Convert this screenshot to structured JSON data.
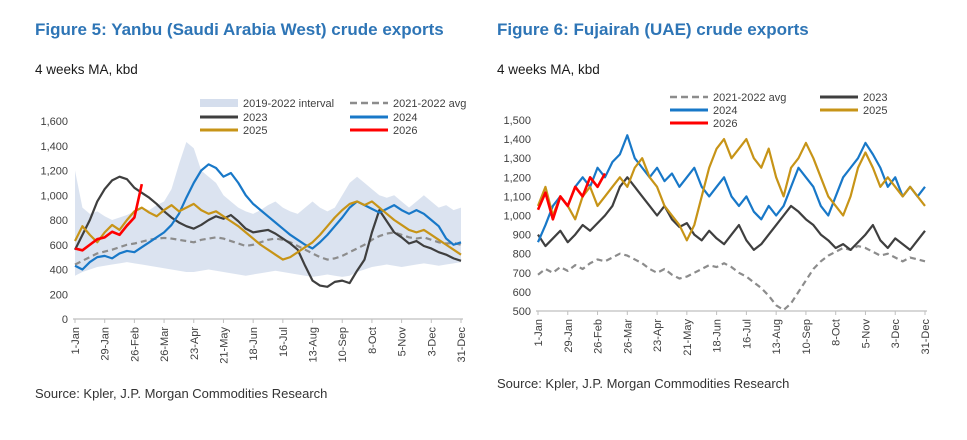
{
  "figures": [
    {
      "title": "Figure 5: Yanbu (Saudi Arabia West) crude exports",
      "subtitle": "4 weeks MA, kbd",
      "source": "Source: Kpler, J.P. Morgan Commodities Research"
    },
    {
      "title": "Figure 6: Fujairah (UAE) crude exports",
      "subtitle": "4 weeks MA, kbd",
      "source": "Source: Kpler, J.P. Morgan Commodities Research"
    }
  ],
  "colors": {
    "title": "#2E75B6",
    "axis_text": "#404040",
    "axis_line": "#BFBFBF",
    "band": "#D5DEED",
    "black": "#3F3F3F",
    "blue": "#1878C8",
    "gold": "#C79417",
    "red": "#FF0000",
    "gray": "#8C8C8C"
  },
  "chart_data": [
    {
      "type": "line",
      "title": "Figure 5: Yanbu (Saudi Arabia West) crude exports",
      "xlabel": "",
      "ylabel": "kbd (4 weeks MA)",
      "ylim": [
        0,
        1600
      ],
      "ytick_step": 200,
      "grid": false,
      "legend_position": "top-inside",
      "weeks_per_year": 52,
      "x_tick_labels": [
        "1-Jan",
        "29-Jan",
        "26-Feb",
        "26-Mar",
        "23-Apr",
        "21-May",
        "18-Jun",
        "16-Jul",
        "13-Aug",
        "10-Sep",
        "8-Oct",
        "5-Nov",
        "3-Dec",
        "31-Dec"
      ],
      "band": {
        "name": "2019-2022 interval",
        "upper": [
          1200,
          900,
          850,
          870,
          830,
          800,
          820,
          840,
          870,
          900,
          880,
          920,
          950,
          1050,
          1250,
          1430,
          1380,
          1200,
          1150,
          1100,
          1000,
          950,
          900,
          870,
          850,
          880,
          920,
          950,
          900,
          870,
          850,
          900,
          950,
          900,
          870,
          900,
          1000,
          1100,
          1150,
          1100,
          1050,
          1000,
          980,
          1000,
          950,
          900,
          950,
          1000,
          950,
          900,
          920,
          880,
          900
        ],
        "lower": [
          350,
          380,
          400,
          420,
          430,
          440,
          450,
          460,
          450,
          440,
          430,
          420,
          410,
          400,
          390,
          380,
          380,
          390,
          400,
          390,
          380,
          370,
          360,
          350,
          360,
          370,
          380,
          390,
          380,
          370,
          360,
          350,
          340,
          350,
          360,
          350,
          340,
          350,
          380,
          400,
          420,
          430,
          440,
          430,
          420,
          430,
          440,
          450,
          440,
          430,
          440,
          450,
          460
        ]
      },
      "series": [
        {
          "name": "2021-2022 avg",
          "style": "dashed",
          "color_key": "gray",
          "values": [
            440,
            470,
            500,
            530,
            545,
            560,
            580,
            600,
            610,
            625,
            640,
            650,
            655,
            650,
            640,
            630,
            620,
            640,
            650,
            660,
            650,
            630,
            610,
            590,
            600,
            620,
            640,
            650,
            640,
            620,
            590,
            560,
            530,
            500,
            480,
            490,
            510,
            540,
            570,
            600,
            640,
            670,
            690,
            700,
            680,
            660,
            650,
            660,
            640,
            620,
            610,
            615,
            600
          ]
        },
        {
          "name": "2023",
          "style": "solid",
          "color_key": "black",
          "values": [
            560,
            680,
            800,
            950,
            1050,
            1120,
            1150,
            1130,
            1060,
            1020,
            980,
            930,
            870,
            820,
            780,
            750,
            730,
            760,
            800,
            830,
            810,
            840,
            790,
            730,
            700,
            710,
            720,
            690,
            650,
            610,
            560,
            430,
            310,
            270,
            260,
            300,
            310,
            290,
            390,
            480,
            700,
            880,
            790,
            700,
            660,
            610,
            630,
            590,
            570,
            540,
            520,
            490,
            470
          ]
        },
        {
          "name": "2024",
          "style": "solid",
          "color_key": "blue",
          "values": [
            430,
            400,
            460,
            500,
            510,
            490,
            530,
            550,
            540,
            580,
            620,
            660,
            700,
            760,
            850,
            980,
            1100,
            1200,
            1250,
            1220,
            1150,
            1180,
            1100,
            1000,
            930,
            880,
            830,
            780,
            730,
            680,
            640,
            600,
            570,
            620,
            680,
            750,
            820,
            900,
            950,
            920,
            890,
            860,
            890,
            920,
            880,
            850,
            880,
            850,
            800,
            750,
            650,
            600,
            620
          ]
        },
        {
          "name": "2025",
          "style": "solid",
          "color_key": "gold",
          "values": [
            630,
            750,
            680,
            620,
            700,
            760,
            720,
            800,
            870,
            900,
            860,
            830,
            880,
            920,
            870,
            900,
            930,
            880,
            850,
            870,
            830,
            790,
            750,
            700,
            650,
            600,
            560,
            520,
            480,
            500,
            540,
            580,
            620,
            680,
            750,
            820,
            880,
            930,
            950,
            920,
            950,
            900,
            850,
            800,
            760,
            720,
            700,
            720,
            680,
            640,
            600,
            560,
            520
          ]
        },
        {
          "name": "2026",
          "style": "solid",
          "color_key": "red",
          "values": [
            570,
            555,
            600,
            645,
            660,
            705,
            680,
            755,
            820,
            1090
          ]
        }
      ],
      "legend_columns": [
        [
          {
            "label": "2019-2022 interval",
            "type": "band",
            "color_key": "band"
          },
          {
            "label": "2023",
            "type": "solid",
            "color_key": "black"
          },
          {
            "label": "2025",
            "type": "solid",
            "color_key": "gold"
          }
        ],
        [
          {
            "label": "2021-2022 avg",
            "type": "dashed",
            "color_key": "gray"
          },
          {
            "label": "2024",
            "type": "solid",
            "color_key": "blue"
          },
          {
            "label": "2026",
            "type": "solid",
            "color_key": "red"
          }
        ]
      ]
    },
    {
      "type": "line",
      "title": "Figure 6: Fujairah (UAE) crude exports",
      "xlabel": "",
      "ylabel": "kbd (4 weeks MA)",
      "ylim": [
        500,
        1500
      ],
      "ytick_step": 100,
      "grid": false,
      "legend_position": "top-inside",
      "weeks_per_year": 52,
      "x_tick_labels": [
        "1-Jan",
        "29-Jan",
        "26-Feb",
        "26-Mar",
        "23-Apr",
        "21-May",
        "18-Jun",
        "16-Jul",
        "13-Aug",
        "10-Sep",
        "8-Oct",
        "5-Nov",
        "3-Dec",
        "31-Dec"
      ],
      "series": [
        {
          "name": "2021-2022 avg",
          "style": "dashed",
          "color_key": "gray",
          "values": [
            690,
            720,
            700,
            730,
            710,
            740,
            720,
            750,
            770,
            760,
            780,
            800,
            790,
            770,
            750,
            720,
            700,
            720,
            690,
            670,
            680,
            700,
            720,
            740,
            730,
            750,
            730,
            700,
            680,
            650,
            620,
            580,
            530,
            505,
            540,
            600,
            660,
            720,
            760,
            790,
            810,
            830,
            820,
            840,
            830,
            810,
            790,
            800,
            780,
            760,
            780,
            770,
            760
          ]
        },
        {
          "name": "2023",
          "style": "solid",
          "color_key": "black",
          "values": [
            900,
            840,
            880,
            920,
            860,
            900,
            950,
            920,
            960,
            1000,
            1050,
            1150,
            1200,
            1150,
            1100,
            1050,
            1000,
            1050,
            980,
            940,
            960,
            900,
            870,
            920,
            880,
            850,
            900,
            950,
            870,
            820,
            850,
            900,
            950,
            1000,
            1050,
            1020,
            980,
            950,
            900,
            870,
            830,
            850,
            820,
            860,
            900,
            950,
            870,
            830,
            880,
            850,
            820,
            870,
            920
          ]
        },
        {
          "name": "2024",
          "style": "solid",
          "color_key": "blue",
          "values": [
            860,
            950,
            1050,
            1100,
            1050,
            1150,
            1200,
            1150,
            1250,
            1200,
            1280,
            1320,
            1420,
            1300,
            1250,
            1200,
            1250,
            1180,
            1220,
            1150,
            1200,
            1250,
            1150,
            1100,
            1150,
            1200,
            1100,
            1050,
            1100,
            1020,
            980,
            1050,
            1000,
            1050,
            1150,
            1250,
            1200,
            1150,
            1050,
            1000,
            1100,
            1200,
            1250,
            1300,
            1380,
            1320,
            1250,
            1150,
            1200,
            1100,
            1150,
            1100,
            1150
          ]
        },
        {
          "name": "2025",
          "style": "solid",
          "color_key": "gold",
          "values": [
            1050,
            1150,
            1000,
            1100,
            1050,
            980,
            1100,
            1150,
            1050,
            1100,
            1150,
            1200,
            1150,
            1250,
            1300,
            1200,
            1150,
            1050,
            1000,
            950,
            870,
            950,
            1100,
            1250,
            1350,
            1400,
            1300,
            1350,
            1400,
            1300,
            1250,
            1350,
            1200,
            1100,
            1250,
            1300,
            1380,
            1300,
            1200,
            1100,
            1050,
            1000,
            1100,
            1250,
            1330,
            1250,
            1150,
            1200,
            1150,
            1100,
            1150,
            1100,
            1050
          ]
        },
        {
          "name": "2026",
          "style": "solid",
          "color_key": "red",
          "values": [
            1030,
            1120,
            980,
            1100,
            1050,
            1150,
            1100,
            1200,
            1150,
            1220
          ]
        }
      ],
      "legend_columns": [
        [
          {
            "label": "2021-2022 avg",
            "type": "dashed",
            "color_key": "gray"
          },
          {
            "label": "2024",
            "type": "solid",
            "color_key": "blue"
          },
          {
            "label": "2026",
            "type": "solid",
            "color_key": "red"
          }
        ],
        [
          {
            "label": "2023",
            "type": "solid",
            "color_key": "black"
          },
          {
            "label": "2025",
            "type": "solid",
            "color_key": "gold"
          }
        ]
      ]
    }
  ]
}
